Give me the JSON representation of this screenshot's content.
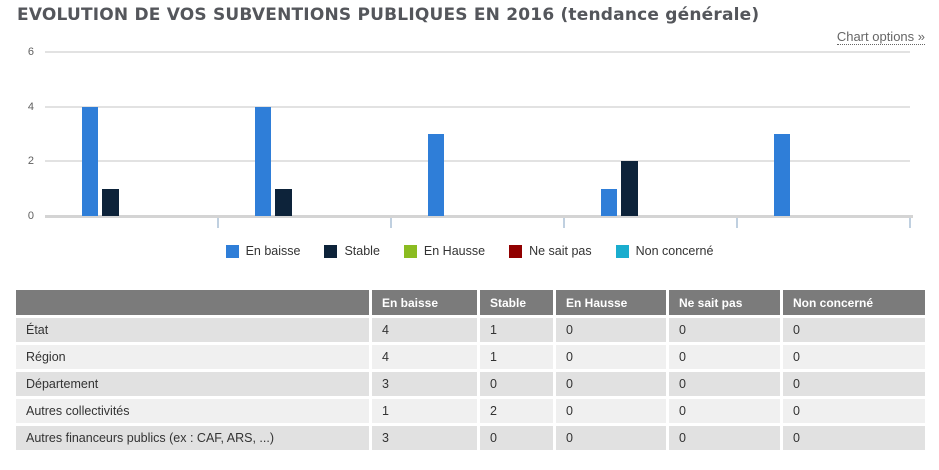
{
  "header": {
    "title": "EVOLUTION DE VOS SUBVENTIONS PUBLIQUES EN 2016 (tendance générale)",
    "chart_options_label": "Chart options »"
  },
  "chart_data": {
    "type": "bar",
    "title": "",
    "xlabel": "",
    "ylabel": "",
    "ylim": [
      0,
      6
    ],
    "yticks": [
      0,
      2,
      4,
      6
    ],
    "grid": true,
    "legend_position": "bottom",
    "categories": [
      "État",
      "Région",
      "Département",
      "Autres collectivités",
      "Autres financeurs publics (ex : CAF, ARS, ...)"
    ],
    "series": [
      {
        "name": "En baisse",
        "color": "#2f7ed8",
        "values": [
          4,
          4,
          3,
          1,
          3
        ]
      },
      {
        "name": "Stable",
        "color": "#0d233a",
        "values": [
          1,
          1,
          0,
          2,
          0
        ]
      },
      {
        "name": "En Hausse",
        "color": "#8bbc21",
        "values": [
          0,
          0,
          0,
          0,
          0
        ]
      },
      {
        "name": "Ne sait pas",
        "color": "#910000",
        "values": [
          0,
          0,
          0,
          0,
          0
        ]
      },
      {
        "name": "Non concerné",
        "color": "#1aadce",
        "values": [
          0,
          0,
          0,
          0,
          0
        ]
      }
    ]
  },
  "table": {
    "columns": [
      "",
      "En baisse",
      "Stable",
      "En Hausse",
      "Ne sait pas",
      "Non concerné"
    ],
    "rows": [
      {
        "label": "État",
        "values": [
          4,
          1,
          0,
          0,
          0
        ]
      },
      {
        "label": "Région",
        "values": [
          4,
          1,
          0,
          0,
          0
        ]
      },
      {
        "label": "Département",
        "values": [
          3,
          0,
          0,
          0,
          0
        ]
      },
      {
        "label": "Autres collectivités",
        "values": [
          1,
          2,
          0,
          0,
          0
        ]
      },
      {
        "label": "Autres financeurs publics (ex : CAF, ARS, ...)",
        "values": [
          3,
          0,
          0,
          0,
          0
        ]
      }
    ]
  }
}
